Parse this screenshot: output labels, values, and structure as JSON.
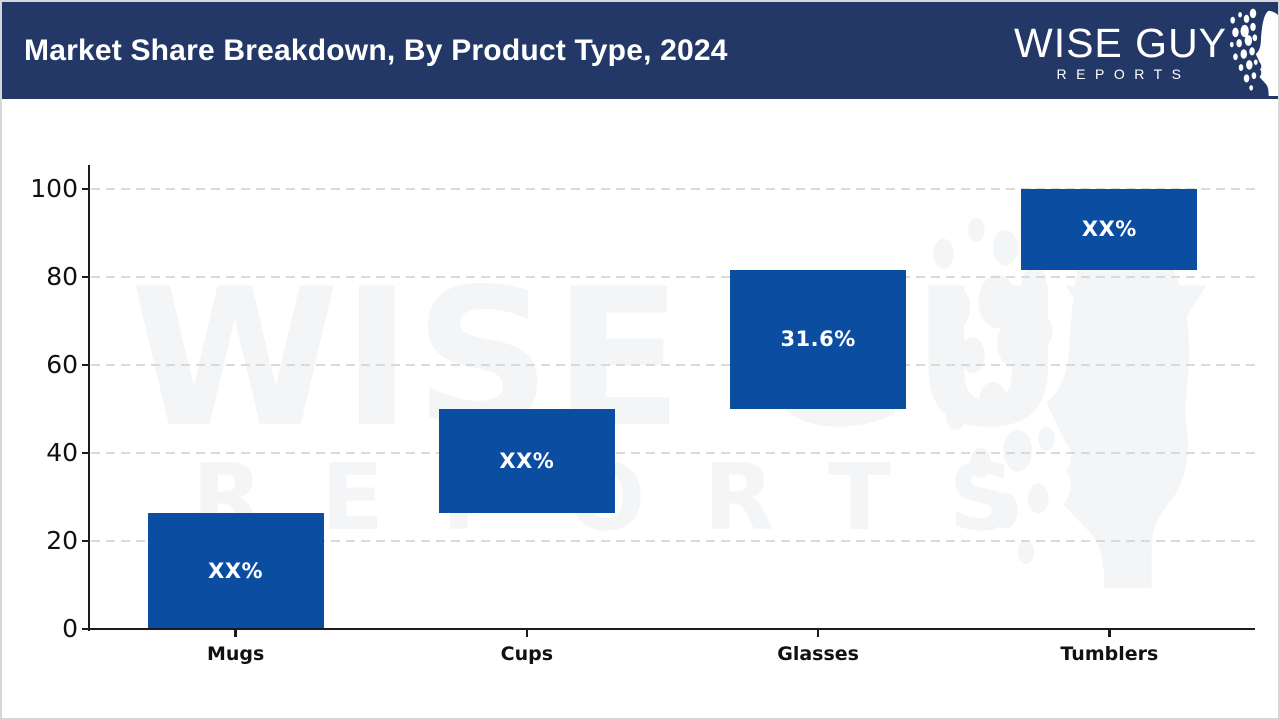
{
  "header": {
    "title": "Market Share Breakdown, By Product Type, 2024",
    "logo": {
      "line1": "WISE GUY",
      "line2": "REPORTS"
    }
  },
  "watermark": {
    "line1": "WISE GUY",
    "line2": "REPORTS"
  },
  "colors": {
    "header_bg": "#233866",
    "bar": "#0b4da1",
    "bar_label": "#ffffff",
    "gridline": "#dadada",
    "axis": "#1c1c1c",
    "watermark": "#f4f5f7"
  },
  "chart_data": {
    "type": "bar",
    "subtype": "floating-waterfall",
    "title": "Market Share Breakdown, By Product Type, 2024",
    "xlabel": "",
    "ylabel": "",
    "categories": [
      "Mugs",
      "Cups",
      "Glasses",
      "Tumblers"
    ],
    "segments": [
      {
        "category": "Mugs",
        "start": 0,
        "end": 26.4,
        "value": 26.4,
        "label": "XX%"
      },
      {
        "category": "Cups",
        "start": 26.4,
        "end": 50,
        "value": 23.6,
        "label": "XX%"
      },
      {
        "category": "Glasses",
        "start": 50,
        "end": 81.6,
        "value": 31.6,
        "label": "31.6%"
      },
      {
        "category": "Tumblers",
        "start": 81.6,
        "end": 100,
        "value": 18.4,
        "label": "XX%"
      }
    ],
    "yticks": [
      0,
      20,
      40,
      60,
      80,
      100
    ],
    "ylim": [
      0,
      105
    ],
    "grid": "horizontal-dashed",
    "legend": "none"
  }
}
